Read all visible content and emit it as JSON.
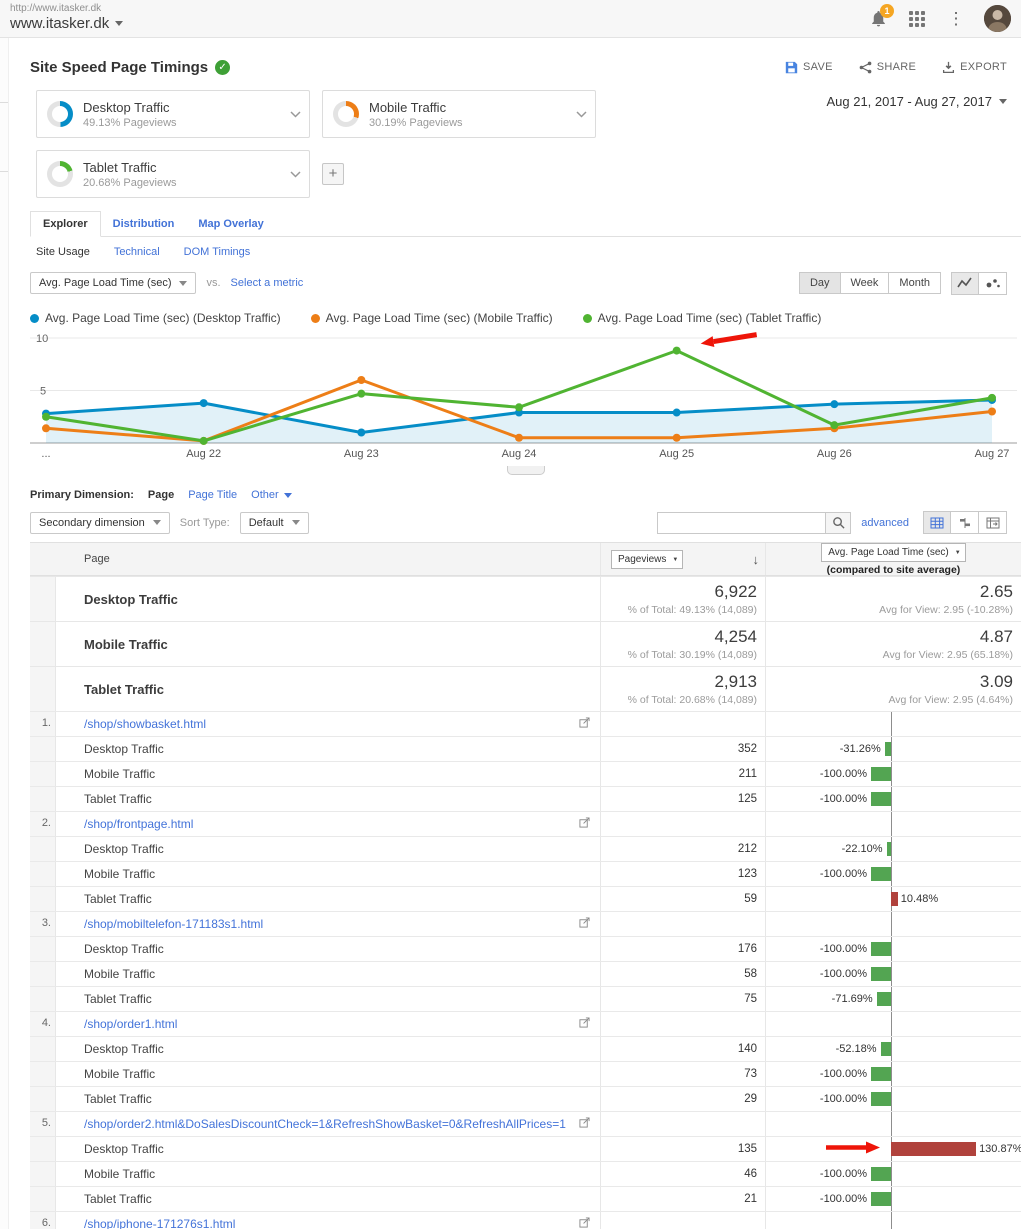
{
  "topbar": {
    "url": "http://www.itasker.dk",
    "account": "www.itasker.dk",
    "notif_badge": "1"
  },
  "header": {
    "title": "Site Speed Page Timings",
    "save": "SAVE",
    "share": "SHARE",
    "export": "EXPORT"
  },
  "segments": {
    "cards": [
      {
        "name": "Desktop Traffic",
        "sub": "49.13% Pageviews",
        "value": 49.13,
        "color": "#058dc7"
      },
      {
        "name": "Mobile Traffic",
        "sub": "30.19% Pageviews",
        "value": 30.19,
        "color": "#ed7e17"
      },
      {
        "name": "Tablet Traffic",
        "sub": "20.68% Pageviews",
        "value": 20.68,
        "color": "#50b432"
      }
    ],
    "add_label": "+"
  },
  "date_range": "Aug 21, 2017 - Aug 27, 2017",
  "tabs": {
    "explorer": "Explorer",
    "distribution": "Distribution",
    "map_overlay": "Map Overlay"
  },
  "subtabs": [
    "Site Usage",
    "Technical",
    "DOM Timings"
  ],
  "toolbar": {
    "metric_select": "Avg. Page Load Time (sec)",
    "vs": "vs.",
    "select_metric": "Select a metric",
    "day": "Day",
    "week": "Week",
    "month": "Month"
  },
  "legend": [
    {
      "label": "Avg. Page Load Time (sec) (Desktop Traffic)",
      "color": "#058dc7"
    },
    {
      "label": "Avg. Page Load Time (sec) (Mobile Traffic)",
      "color": "#ed7e17"
    },
    {
      "label": "Avg. Page Load Time (sec) (Tablet Traffic)",
      "color": "#50b432"
    }
  ],
  "chart_data": {
    "type": "line",
    "x": [
      "...",
      "Aug 22",
      "Aug 23",
      "Aug 24",
      "Aug 25",
      "Aug 26",
      "Aug 27"
    ],
    "ylim": [
      0,
      10
    ],
    "yticks": [
      5,
      10
    ],
    "xlabel": "",
    "ylabel": "Avg. Page Load Time (sec)",
    "grid": true,
    "legend_position": "top",
    "series": [
      {
        "name": "Avg. Page Load Time (sec) (Desktop Traffic)",
        "color": "#058dc7",
        "area": true,
        "values": [
          2.8,
          3.8,
          1.0,
          2.9,
          2.9,
          3.7,
          4.1
        ]
      },
      {
        "name": "Avg. Page Load Time (sec) (Mobile Traffic)",
        "color": "#ed7e17",
        "area": false,
        "values": [
          1.4,
          0.2,
          6.0,
          0.5,
          0.5,
          1.4,
          3.0
        ]
      },
      {
        "name": "Avg. Page Load Time (sec) (Tablet Traffic)",
        "color": "#50b432",
        "area": false,
        "values": [
          2.5,
          0.2,
          4.7,
          3.4,
          8.8,
          1.7,
          4.3
        ]
      }
    ],
    "annotation": "red arrow pointing at Tablet Traffic peak at Aug 25"
  },
  "dimension_bar": {
    "label": "Primary Dimension:",
    "primary": "Page",
    "alt1": "Page Title",
    "alt2": "Other"
  },
  "controls": {
    "secondary_dimension": "Secondary dimension",
    "sort_type_label": "Sort Type:",
    "sort_type": "Default",
    "search_value": "",
    "advanced": "advanced"
  },
  "table": {
    "headers": {
      "page": "Page",
      "pageviews": "Pageviews",
      "metric": "Avg. Page Load Time (sec)",
      "metric_note": "(compared to site average)"
    },
    "summary": [
      {
        "name": "Desktop Traffic",
        "pageviews": "6,922",
        "pageviews_sub": "% of Total: 49.13% (14,089)",
        "metric": "2.65",
        "metric_sub": "Avg for View: 2.95 (-10.28%)"
      },
      {
        "name": "Mobile Traffic",
        "pageviews": "4,254",
        "pageviews_sub": "% of Total: 30.19% (14,089)",
        "metric": "4.87",
        "metric_sub": "Avg for View: 2.95 (65.18%)"
      },
      {
        "name": "Tablet Traffic",
        "pageviews": "2,913",
        "pageviews_sub": "% of Total: 20.68% (14,089)",
        "metric": "3.09",
        "metric_sub": "Avg for View: 2.95 (4.64%)"
      }
    ],
    "rows": [
      {
        "index": "1.",
        "url": "/shop/showbasket.html",
        "segments": [
          {
            "name": "Desktop Traffic",
            "pageviews": "352",
            "delta": "-31.26%"
          },
          {
            "name": "Mobile Traffic",
            "pageviews": "211",
            "delta": "-100.00%"
          },
          {
            "name": "Tablet Traffic",
            "pageviews": "125",
            "delta": "-100.00%"
          }
        ]
      },
      {
        "index": "2.",
        "url": "/shop/frontpage.html",
        "segments": [
          {
            "name": "Desktop Traffic",
            "pageviews": "212",
            "delta": "-22.10%"
          },
          {
            "name": "Mobile Traffic",
            "pageviews": "123",
            "delta": "-100.00%"
          },
          {
            "name": "Tablet Traffic",
            "pageviews": "59",
            "delta": "10.48%"
          }
        ]
      },
      {
        "index": "3.",
        "url": "/shop/mobiltelefon-171183s1.html",
        "segments": [
          {
            "name": "Desktop Traffic",
            "pageviews": "176",
            "delta": "-100.00%"
          },
          {
            "name": "Mobile Traffic",
            "pageviews": "58",
            "delta": "-100.00%"
          },
          {
            "name": "Tablet Traffic",
            "pageviews": "75",
            "delta": "-71.69%"
          }
        ]
      },
      {
        "index": "4.",
        "url": "/shop/order1.html",
        "segments": [
          {
            "name": "Desktop Traffic",
            "pageviews": "140",
            "delta": "-52.18%"
          },
          {
            "name": "Mobile Traffic",
            "pageviews": "73",
            "delta": "-100.00%"
          },
          {
            "name": "Tablet Traffic",
            "pageviews": "29",
            "delta": "-100.00%"
          }
        ]
      },
      {
        "index": "5.",
        "url": "/shop/order2.html&DoSalesDiscountCheck=1&RefreshShowBasket=0&RefreshAllPrices=1",
        "segments": [
          {
            "name": "Desktop Traffic",
            "pageviews": "135",
            "delta": "130.87%",
            "arrow": true
          },
          {
            "name": "Mobile Traffic",
            "pageviews": "46",
            "delta": "-100.00%"
          },
          {
            "name": "Tablet Traffic",
            "pageviews": "21",
            "delta": "-100.00%"
          }
        ]
      },
      {
        "index": "6.",
        "url": "/shop/iphone-171276s1.html",
        "segments": []
      }
    ]
  },
  "colors": {
    "pos_bar": "#b0423c",
    "neg_bar": "#53a552",
    "arrow": "#ee1509",
    "link": "#4272d7"
  }
}
